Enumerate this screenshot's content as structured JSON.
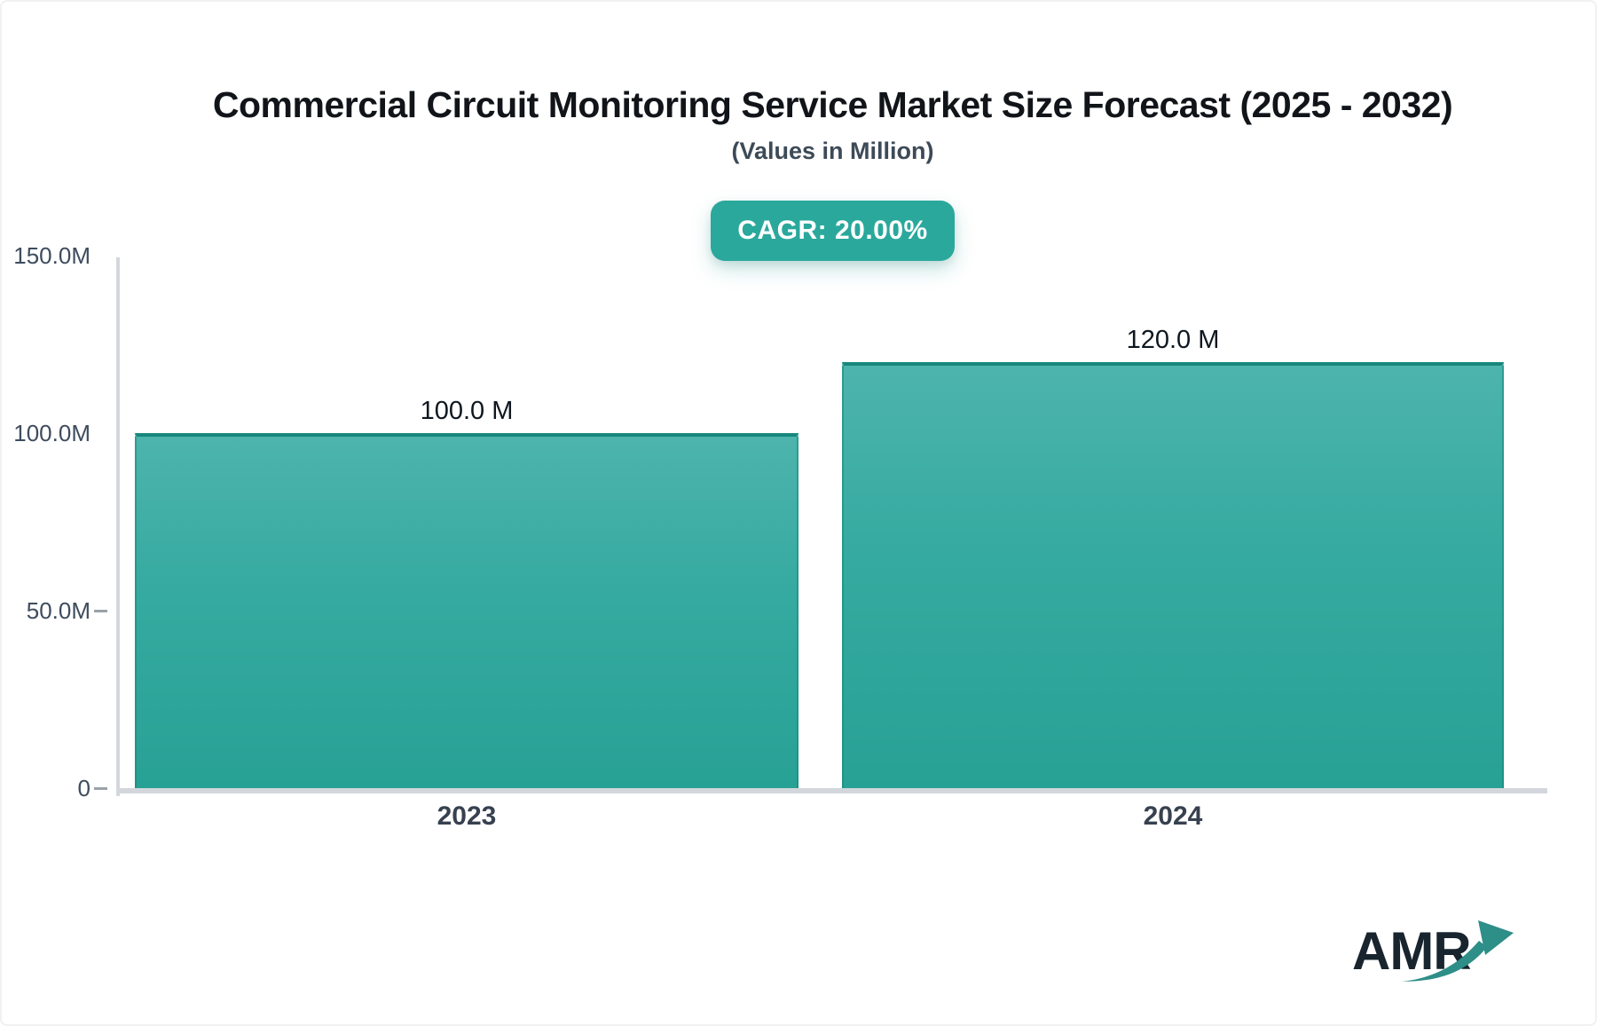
{
  "header": {
    "title": "Commercial Circuit Monitoring Service Market Size Forecast (2025 - 2032)",
    "subtitle": "(Values in Million)",
    "cagr_label": "CAGR: 20.00%"
  },
  "chart_data": {
    "type": "bar",
    "title": "Commercial Circuit Monitoring Service Market Size Forecast (2025 - 2032)",
    "subtitle": "(Values in Million)",
    "cagr_percent": 20.0,
    "categories": [
      "2023",
      "2024"
    ],
    "values": [
      100.0,
      120.0
    ],
    "value_labels": [
      "100.0 M",
      "120.0 M"
    ],
    "unit": "Million",
    "ylim": [
      0,
      150
    ],
    "ytick_values": [
      150,
      100,
      50,
      0
    ],
    "ytick_labels": [
      "150.0M",
      "100.0M",
      "50.0M",
      "0"
    ],
    "grid": false,
    "legend_position": "none"
  },
  "colors": {
    "accent_teal": "#2aa89c",
    "bar_gradient_top": "#4db4ac",
    "bar_gradient_bottom": "#28a195",
    "bar_border": "#17877d",
    "axis_line": "#d3d7dc",
    "title_text": "#111418",
    "axis_text": "#3e4c5d",
    "logo_text_color": "#18242e",
    "logo_arrow_color": "#2e8e88"
  },
  "logo": {
    "text": "AMR"
  }
}
